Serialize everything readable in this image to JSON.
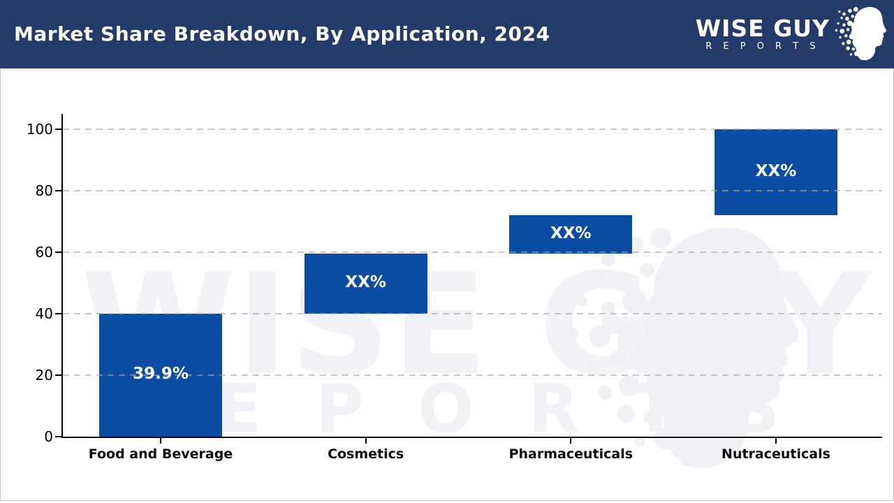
{
  "header": {
    "title": "Market Share Breakdown, By Application, 2024",
    "logo": {
      "line1": "WISE GUY",
      "line2": "R E P O R T S",
      "face_icon": "face-profile-dots-icon"
    }
  },
  "watermark": {
    "line1": "WISE GUY",
    "line2": "R E P O R T S"
  },
  "colors": {
    "header_bg": "#243A68",
    "bar": "#0B4DA2",
    "bar_label": "#FFFFFF",
    "watermark": "#F1F2F5",
    "gridline": "#C9C9C9",
    "axis": "#000000"
  },
  "chart_data": {
    "type": "bar",
    "subtype": "waterfall",
    "title": "Market Share Breakdown, By Application, 2024",
    "categories": [
      "Food and Beverage",
      "Cosmetics",
      "Pharmaceuticals",
      "Nutraceuticals"
    ],
    "series": [
      {
        "name": "Market Share (%)",
        "segments": [
          {
            "category": "Food and Beverage",
            "start": 0,
            "end": 39.9,
            "label": "39.9%"
          },
          {
            "category": "Cosmetics",
            "start": 39.9,
            "end": 59.5,
            "label": "XX%"
          },
          {
            "category": "Pharmaceuticals",
            "start": 59.5,
            "end": 72.0,
            "label": "XX%"
          },
          {
            "category": "Nutraceuticals",
            "start": 72.0,
            "end": 100.0,
            "label": "XX%"
          }
        ]
      }
    ],
    "xlabel": "",
    "ylabel": "",
    "yticks": [
      0,
      20,
      40,
      60,
      80,
      100
    ],
    "ylim": [
      0,
      105
    ],
    "grid": true,
    "gridline_style": "dashed",
    "legend": "none",
    "bar_color": "#0B4DA2"
  }
}
